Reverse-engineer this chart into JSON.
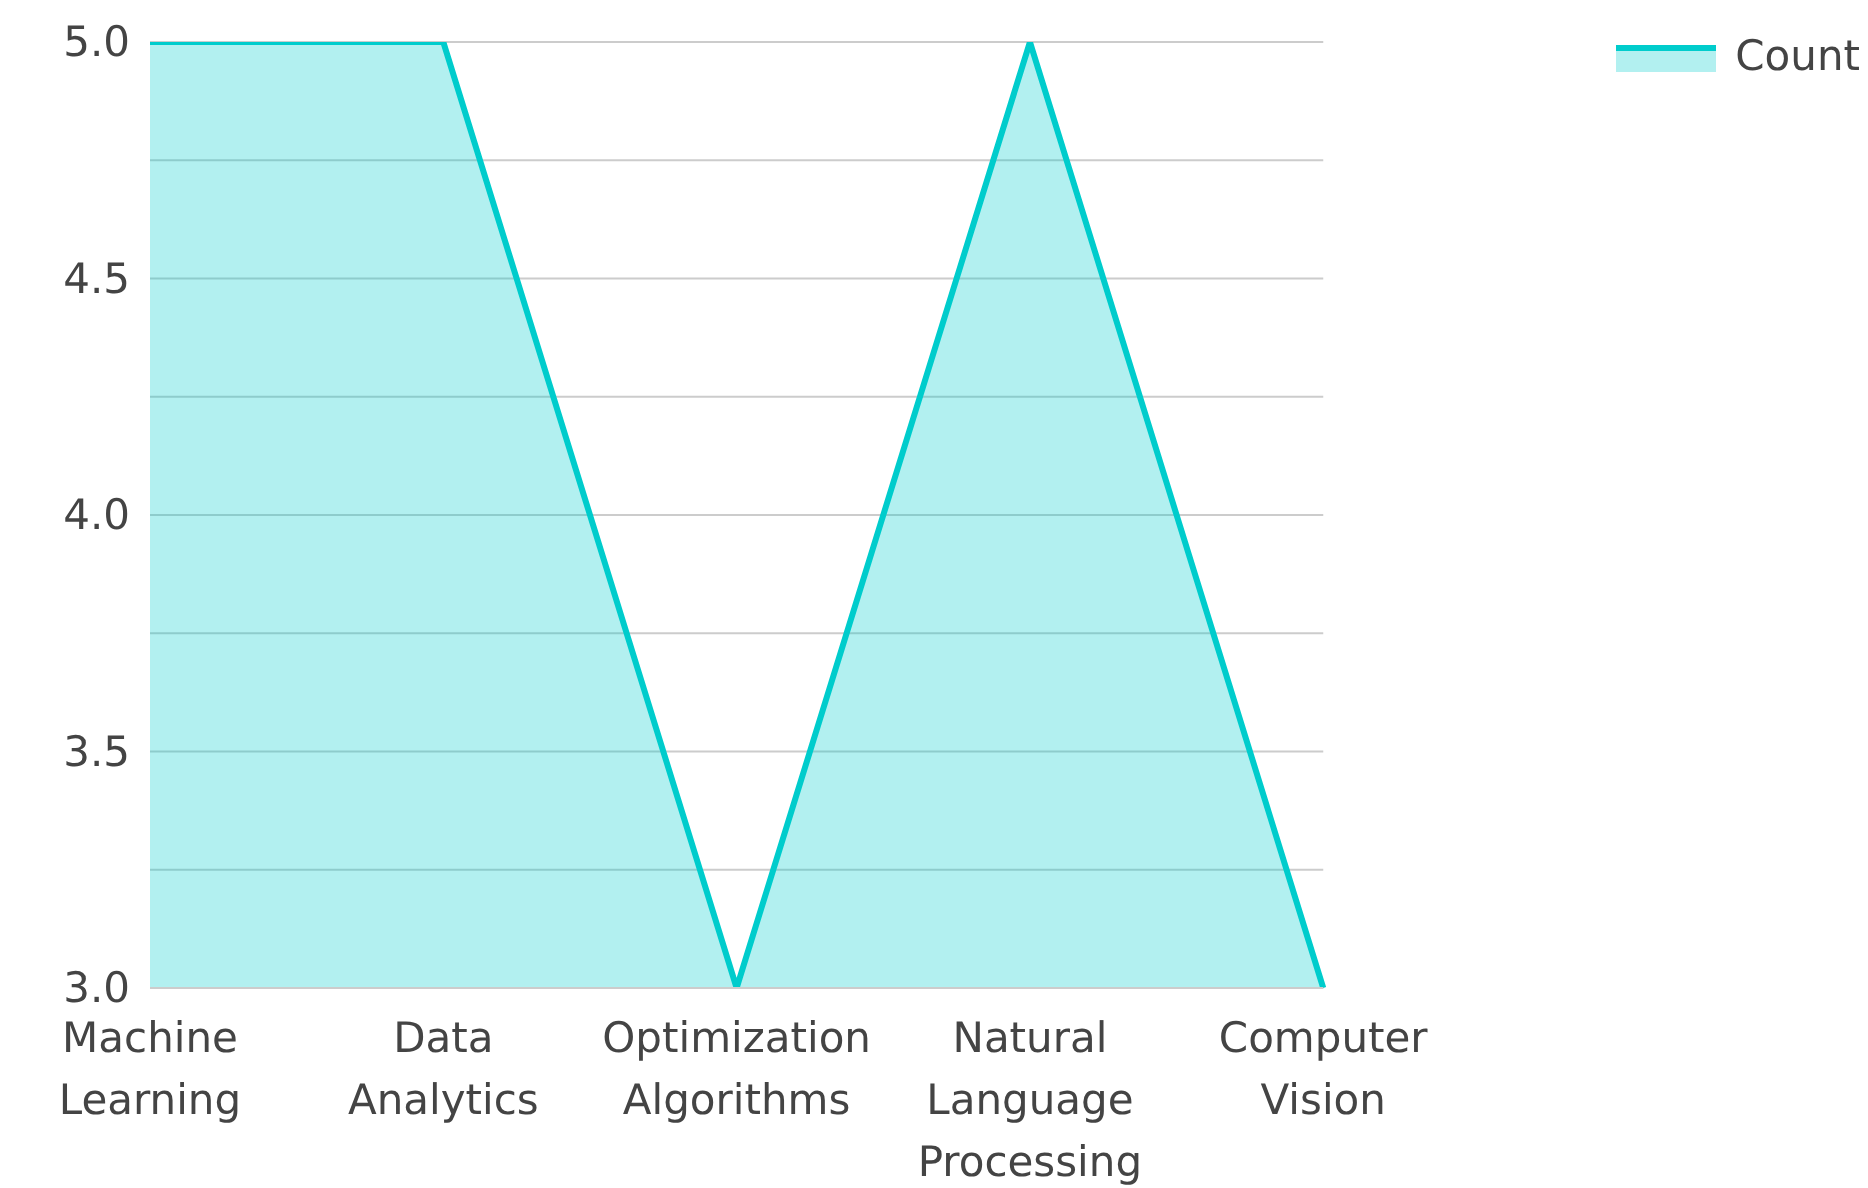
{
  "chart_data": {
    "type": "area",
    "categories": [
      "Machine Learning",
      "Data Analytics",
      "Optimization Algorithms",
      "Natural Language Processing",
      "Computer Vision"
    ],
    "series": [
      {
        "name": "Count",
        "color": "#00cccc",
        "values": [
          5,
          5,
          3,
          5,
          3
        ]
      }
    ],
    "ylim": [
      3,
      5
    ],
    "yticks": [
      {
        "value": 3,
        "label": "3.0"
      },
      {
        "value": 3.25,
        "label": null
      },
      {
        "value": 3.5,
        "label": "3.5"
      },
      {
        "value": 3.75,
        "label": null
      },
      {
        "value": 4,
        "label": "4.0"
      },
      {
        "value": 4.25,
        "label": null
      },
      {
        "value": 4.5,
        "label": "4.5"
      },
      {
        "value": 4.75,
        "label": null
      },
      {
        "value": 5,
        "label": "5.0"
      }
    ],
    "grid": "y",
    "legend": "top right"
  }
}
